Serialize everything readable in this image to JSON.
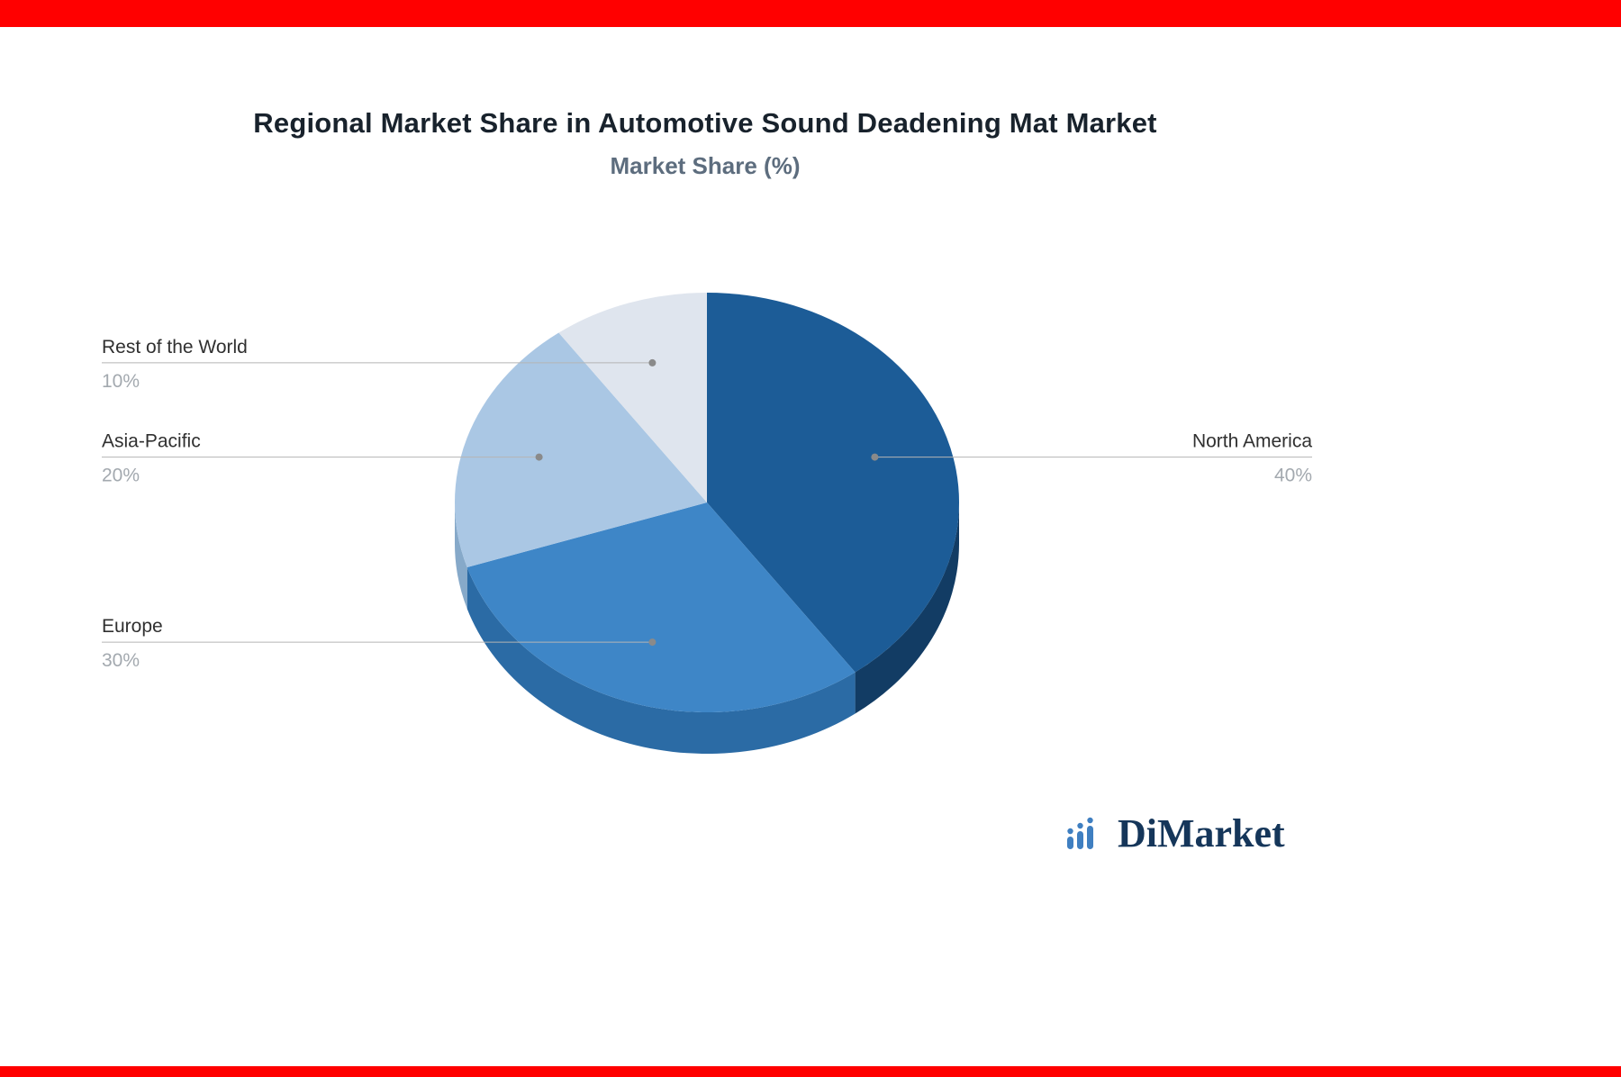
{
  "page": {
    "background": "#ffffff"
  },
  "accents": {
    "top_bar_color": "#ff0000",
    "bottom_bar_color": "#ff0000"
  },
  "header": {
    "title": "Regional Market Share in Automotive Sound Deadening Mat Market",
    "subtitle": "Market Share (%)"
  },
  "branding": {
    "name": "DiMarket",
    "icon": "bar-chart-icon",
    "text_color": "#15365a",
    "icon_color": "#3f7fc1"
  },
  "chart_data": {
    "type": "pie",
    "style": "3d",
    "title": "Regional Market Share in Automotive Sound Deadening Mat Market",
    "subtitle": "Market Share (%)",
    "unit": "%",
    "start_angle_deg": -90,
    "direction": "clockwise",
    "legend_position": "callouts",
    "slices": [
      {
        "label": "North America",
        "value": 40,
        "value_label": "40%",
        "color": "#1c5c97",
        "side_color": "#123c64"
      },
      {
        "label": "Europe",
        "value": 30,
        "value_label": "30%",
        "color": "#3e86c7",
        "side_color": "#2b6ba5"
      },
      {
        "label": "Asia-Pacific",
        "value": 20,
        "value_label": "20%",
        "color": "#aac7e4",
        "side_color": "#86a9c9"
      },
      {
        "label": "Rest of the World",
        "value": 10,
        "value_label": "10%",
        "color": "#dfe5ee",
        "side_color": "#b8c5d6"
      }
    ],
    "callout_style": {
      "name_color": "#303030",
      "value_color": "#a3a9af",
      "line_color": "#b5b5b5",
      "dot_color": "#8a8a8a"
    }
  }
}
